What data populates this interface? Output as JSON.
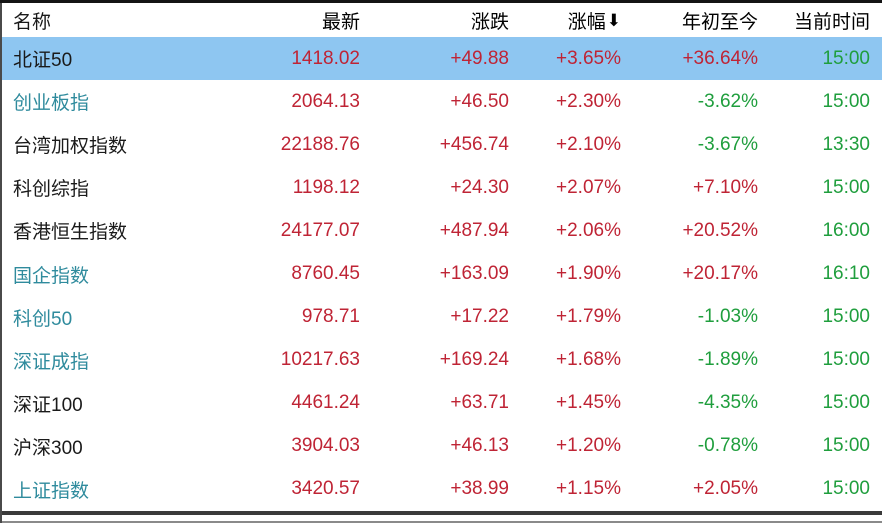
{
  "colors": {
    "up_red": "#bf2435",
    "down_green": "#1f9e3d",
    "time_green": "#1f9e3d",
    "selected_row_blue": "#8ec6f1",
    "teal_index_name": "#2f8b9d",
    "black_index_name": "#1a1a1a",
    "top_bar": "#141414",
    "bottom_separator": "#3a3a3a"
  },
  "table": {
    "columns": [
      {
        "label": "名称"
      },
      {
        "label": "最新"
      },
      {
        "label": "涨跌"
      },
      {
        "label": "涨幅",
        "sort_icon": "⬇"
      },
      {
        "label": "年初至今"
      },
      {
        "label": "当前时间"
      }
    ],
    "rows": [
      {
        "name": "北证50",
        "last": "1418.02",
        "change": "+49.88",
        "pct": "+3.65%",
        "ytd": "+36.64%",
        "time": "15:00",
        "selected": true,
        "teal_name": false
      },
      {
        "name": "创业板指",
        "last": "2064.13",
        "change": "+46.50",
        "pct": "+2.30%",
        "ytd": "-3.62%",
        "time": "15:00",
        "selected": false,
        "teal_name": true
      },
      {
        "name": "台湾加权指数",
        "last": "22188.76",
        "change": "+456.74",
        "pct": "+2.10%",
        "ytd": "-3.67%",
        "time": "13:30",
        "selected": false,
        "teal_name": false
      },
      {
        "name": "科创综指",
        "last": "1198.12",
        "change": "+24.30",
        "pct": "+2.07%",
        "ytd": "+7.10%",
        "time": "15:00",
        "selected": false,
        "teal_name": false
      },
      {
        "name": "香港恒生指数",
        "last": "24177.07",
        "change": "+487.94",
        "pct": "+2.06%",
        "ytd": "+20.52%",
        "time": "16:00",
        "selected": false,
        "teal_name": false
      },
      {
        "name": "国企指数",
        "last": "8760.45",
        "change": "+163.09",
        "pct": "+1.90%",
        "ytd": "+20.17%",
        "time": "16:10",
        "selected": false,
        "teal_name": true
      },
      {
        "name": "科创50",
        "last": "978.71",
        "change": "+17.22",
        "pct": "+1.79%",
        "ytd": "-1.03%",
        "time": "15:00",
        "selected": false,
        "teal_name": true
      },
      {
        "name": "深证成指",
        "last": "10217.63",
        "change": "+169.24",
        "pct": "+1.68%",
        "ytd": "-1.89%",
        "time": "15:00",
        "selected": false,
        "teal_name": true
      },
      {
        "name": "深证100",
        "last": "4461.24",
        "change": "+63.71",
        "pct": "+1.45%",
        "ytd": "-4.35%",
        "time": "15:00",
        "selected": false,
        "teal_name": false
      },
      {
        "name": "沪深300",
        "last": "3904.03",
        "change": "+46.13",
        "pct": "+1.20%",
        "ytd": "-0.78%",
        "time": "15:00",
        "selected": false,
        "teal_name": false
      },
      {
        "name": "上证指数",
        "last": "3420.57",
        "change": "+38.99",
        "pct": "+1.15%",
        "ytd": "+2.05%",
        "time": "15:00",
        "selected": false,
        "teal_name": true
      }
    ]
  }
}
